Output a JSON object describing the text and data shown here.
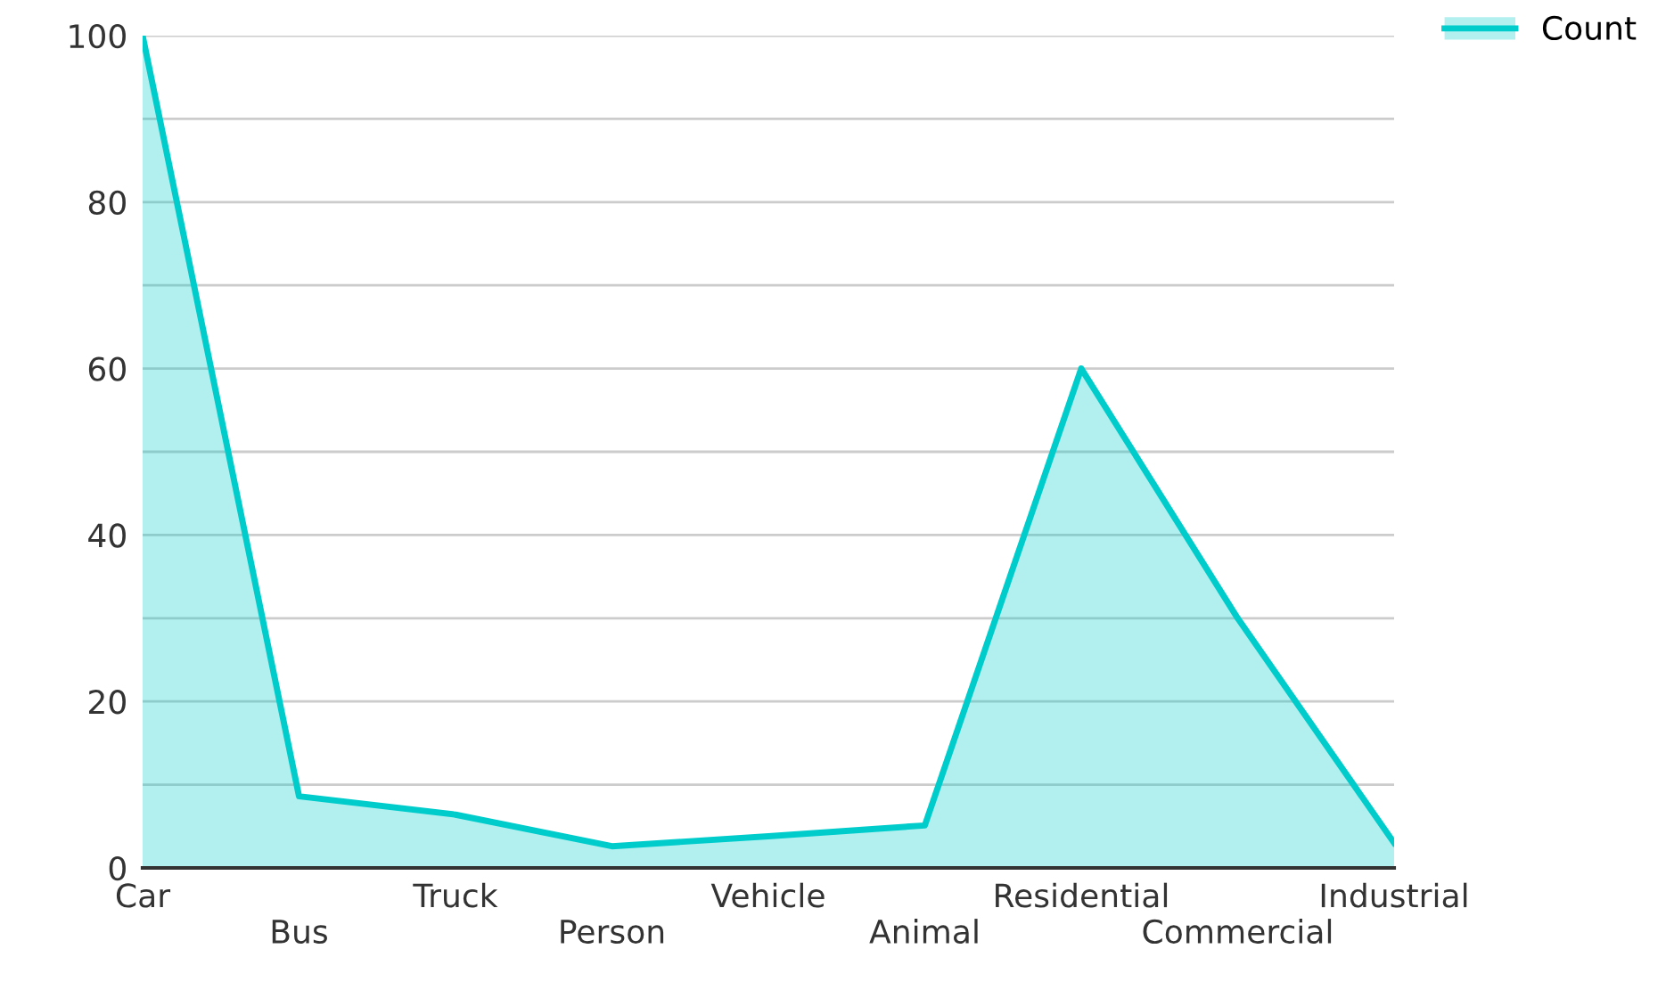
{
  "chart_data": {
    "type": "area",
    "categories": [
      "Car",
      "Bus",
      "Truck",
      "Person",
      "Vehicle",
      "Animal",
      "Residential",
      "Commercial",
      "Industrial"
    ],
    "series": [
      {
        "name": "Count",
        "color": "#00cccc",
        "values": [
          100,
          8.6,
          6.4,
          2.6,
          3.8,
          5.1,
          60,
          30,
          3
        ]
      }
    ],
    "ylim": [
      0,
      100
    ],
    "yticks": [
      0,
      {
        "value": 10,
        "label": null
      },
      20,
      {
        "value": 30,
        "label": null
      },
      40,
      {
        "value": 50,
        "label": null
      },
      60,
      {
        "value": 70,
        "label": null
      },
      80,
      {
        "value": 90,
        "label": null
      },
      100
    ],
    "grid": "y",
    "legend": "top right"
  }
}
